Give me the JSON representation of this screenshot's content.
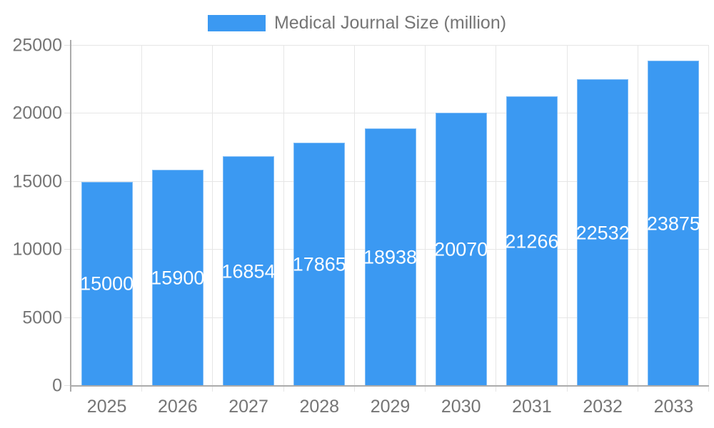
{
  "legend": {
    "label": "Medical Journal Size (million)"
  },
  "colors": {
    "bar": "#3b99f2",
    "bar_label_text": "#ffffff",
    "axis_text": "#757575",
    "gridline": "#e6e6e6",
    "tick": "#e0e0e0",
    "axis_line": "#ababab",
    "background": "#ffffff"
  },
  "chart_data": {
    "type": "bar",
    "title": "Medical Journal Size (million)",
    "categories": [
      "2025",
      "2026",
      "2027",
      "2028",
      "2029",
      "2030",
      "2031",
      "2032",
      "2033"
    ],
    "values": [
      15000,
      15900,
      16854,
      17865,
      18938,
      20070,
      21266,
      22532,
      23875
    ],
    "xlabel": "",
    "ylabel": "",
    "ylim": [
      0,
      25000
    ],
    "yticks": [
      0,
      5000,
      10000,
      15000,
      20000,
      25000
    ],
    "grid": true,
    "legend_position": "top-center",
    "value_labels": "inside-center-white"
  }
}
